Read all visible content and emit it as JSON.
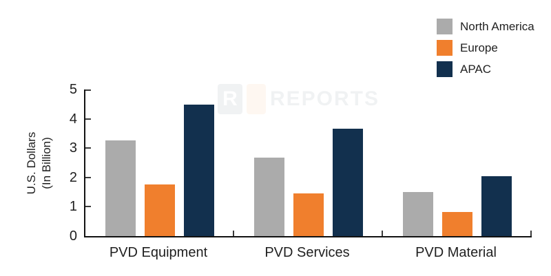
{
  "chart_data": {
    "type": "bar",
    "title": "",
    "categories": [
      "PVD Equipment",
      "PVD Services",
      "PVD Material"
    ],
    "series": [
      {
        "name": "North America",
        "color": "#ABABAB",
        "values": [
          3.27,
          2.67,
          1.51
        ]
      },
      {
        "name": "Europe",
        "color": "#F07F2D",
        "values": [
          1.77,
          1.45,
          0.82
        ]
      },
      {
        "name": "APAC",
        "color": "#12304E",
        "values": [
          4.48,
          3.67,
          2.05
        ]
      }
    ],
    "xlabel": "",
    "ylabel": "U.S. Dollars (In Billion)",
    "ylabel_lines": [
      "U.S. Dollars",
      "(In Billion)"
    ],
    "ylim": [
      0,
      5
    ],
    "yticks": [
      0,
      1,
      2,
      3,
      4,
      5
    ],
    "grid": false,
    "legend_position": "top-right",
    "background": "#ffffff",
    "axis_color": "#111111"
  },
  "watermark": {
    "logo_letter": "R",
    "text": "REPORTS"
  }
}
